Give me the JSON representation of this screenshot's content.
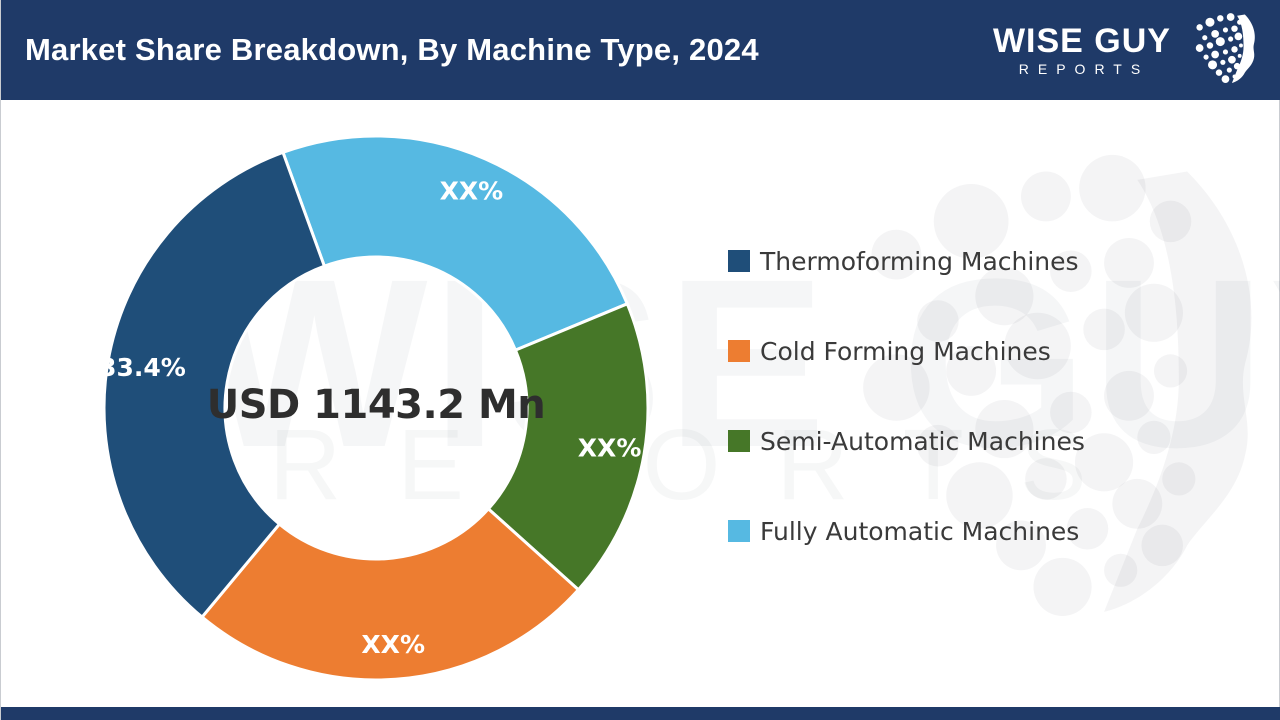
{
  "header": {
    "title": "Market Share Breakdown, By Machine Type, 2024",
    "bg_color": "#1f3a68",
    "logo": {
      "line1": "WISE GUY",
      "line2": "REPORTS"
    }
  },
  "watermark": {
    "line1": "WISE GUY",
    "line2": "REPORTS"
  },
  "chart_data": {
    "type": "pie",
    "subtype": "donut",
    "title": "Market Share Breakdown, By Machine Type, 2024",
    "center_label": "USD 1143.2 Mn",
    "start_angle_deg": -20,
    "direction": "clockwise",
    "outer_radius": 272,
    "inner_radius": 151,
    "label_radius": 237,
    "series": [
      {
        "name": "Fully Automatic Machines",
        "share_pct": 24.3,
        "display_label": "XX%",
        "color": "#56b9e2"
      },
      {
        "name": "Semi-Automatic Machines",
        "share_pct": 17.9,
        "display_label": "XX%",
        "color": "#467728"
      },
      {
        "name": "Cold Forming Machines",
        "share_pct": 24.4,
        "display_label": "XX%",
        "color": "#ed7d31"
      },
      {
        "name": "Thermoforming Machines",
        "share_pct": 33.4,
        "display_label": "33.4%",
        "color": "#1f4e79"
      }
    ],
    "legend_position": "right"
  },
  "legend": {
    "items": [
      {
        "label": "Thermoforming Machines",
        "color": "#1f4e79"
      },
      {
        "label": "Cold Forming Machines",
        "color": "#ed7d31"
      },
      {
        "label": "Semi-Automatic Machines",
        "color": "#467728"
      },
      {
        "label": "Fully Automatic Machines",
        "color": "#56b9e2"
      }
    ]
  }
}
